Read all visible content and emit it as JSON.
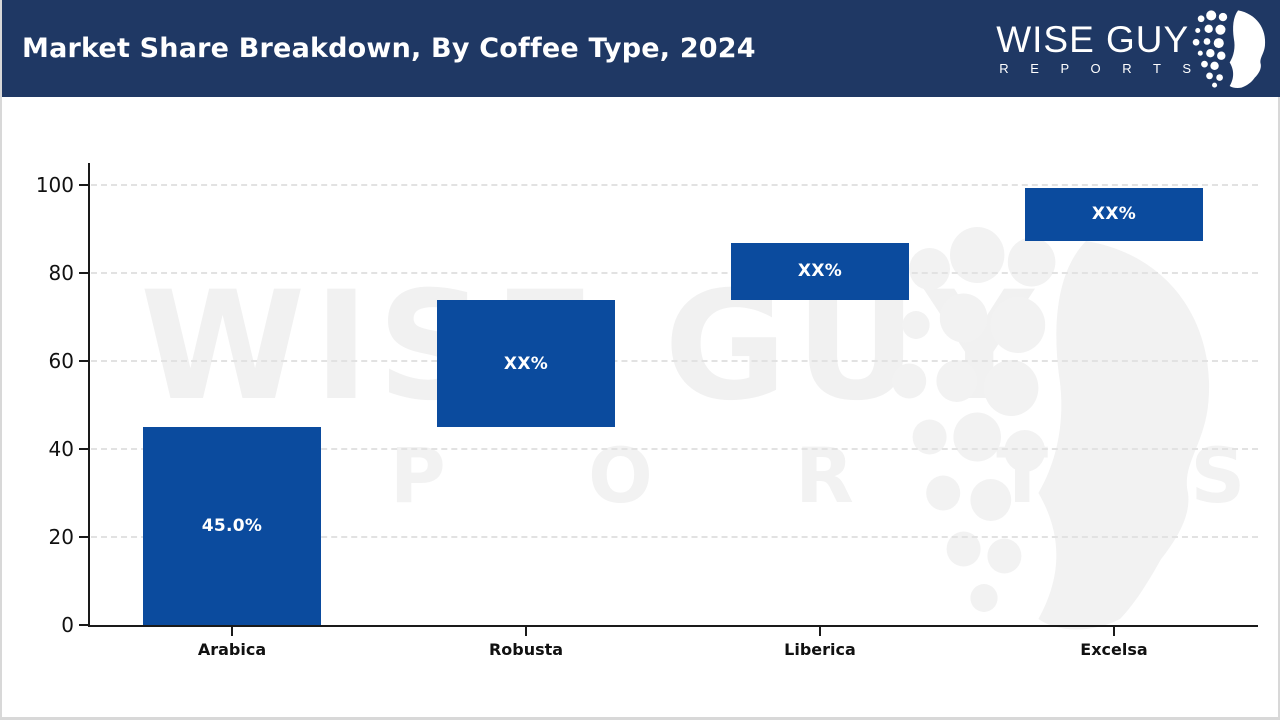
{
  "header": {
    "title": "Market Share Breakdown, By Coffee Type, 2024",
    "logo": {
      "line1": "WISE GUY",
      "line2": "R E P O R T S"
    }
  },
  "watermark": {
    "line1": "WISE GUY",
    "line2": "P O R T S"
  },
  "colors": {
    "header_bg": "#1f3864",
    "bar_fill": "#0b4b9e",
    "bar_label": "#ffffff",
    "grid_line": "#e2e2e2",
    "axis_line": "#1a1a1a",
    "tick_text": "#111111",
    "watermark_text": "#f1f1f1",
    "canvas_border": "#d8d8d8"
  },
  "chart_data": {
    "type": "bar",
    "subtype": "waterfall",
    "title": "Market Share Breakdown, By Coffee Type, 2024",
    "categories": [
      "Arabica",
      "Robusta",
      "Liberica",
      "Excelsa"
    ],
    "segments": [
      {
        "category": "Arabica",
        "start": 0,
        "end": 45.0,
        "label": "45.0%"
      },
      {
        "category": "Robusta",
        "start": 45.0,
        "end": 73.8,
        "label": "XX%"
      },
      {
        "category": "Liberica",
        "start": 73.9,
        "end": 86.9,
        "label": "XX%"
      },
      {
        "category": "Excelsa",
        "start": 87.2,
        "end": 99.4,
        "label": "XX%"
      }
    ],
    "y_ticks": [
      0,
      20,
      40,
      60,
      80,
      100
    ],
    "ylim": [
      0,
      105
    ],
    "xlabel": "",
    "ylabel": "",
    "grid": "horizontal-dashed",
    "legend": "none"
  }
}
